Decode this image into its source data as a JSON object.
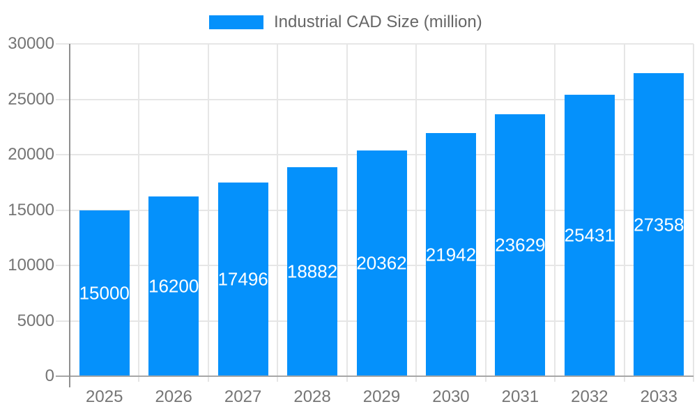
{
  "legend": {
    "label": "Industrial CAD Size (million)"
  },
  "colors": {
    "bar": "#0591fb",
    "grid": "#e6e6e6",
    "x_axis_line": "#a6a6a6",
    "y_axis_line": "#8f8f8f",
    "tick_label": "#757575",
    "legend_text": "#666666",
    "bar_value_label": "#ffffff",
    "background": "#ffffff"
  },
  "chart_data": {
    "type": "bar",
    "title": "Industrial CAD Size (million)",
    "categories": [
      "2025",
      "2026",
      "2027",
      "2028",
      "2029",
      "2030",
      "2031",
      "2032",
      "2033"
    ],
    "series": [
      {
        "name": "Industrial CAD Size (million)",
        "values": [
          15000,
          16200,
          17496,
          18882,
          20362,
          21942,
          23629,
          25431,
          27358
        ]
      }
    ],
    "bar_value_labels": [
      "15000",
      "16200",
      "17496",
      "18882",
      "20362",
      "21942",
      "23629",
      "25431",
      "27358"
    ],
    "xlabel": "",
    "ylabel": "",
    "ylim": [
      0,
      30000
    ],
    "yticks": [
      0,
      5000,
      10000,
      15000,
      20000,
      25000,
      30000
    ],
    "ytick_labels": [
      "0",
      "5000",
      "10000",
      "15000",
      "20000",
      "25000",
      "30000"
    ],
    "grid": "both",
    "legend_position": "top-center",
    "value_label_position": "inside-center"
  }
}
